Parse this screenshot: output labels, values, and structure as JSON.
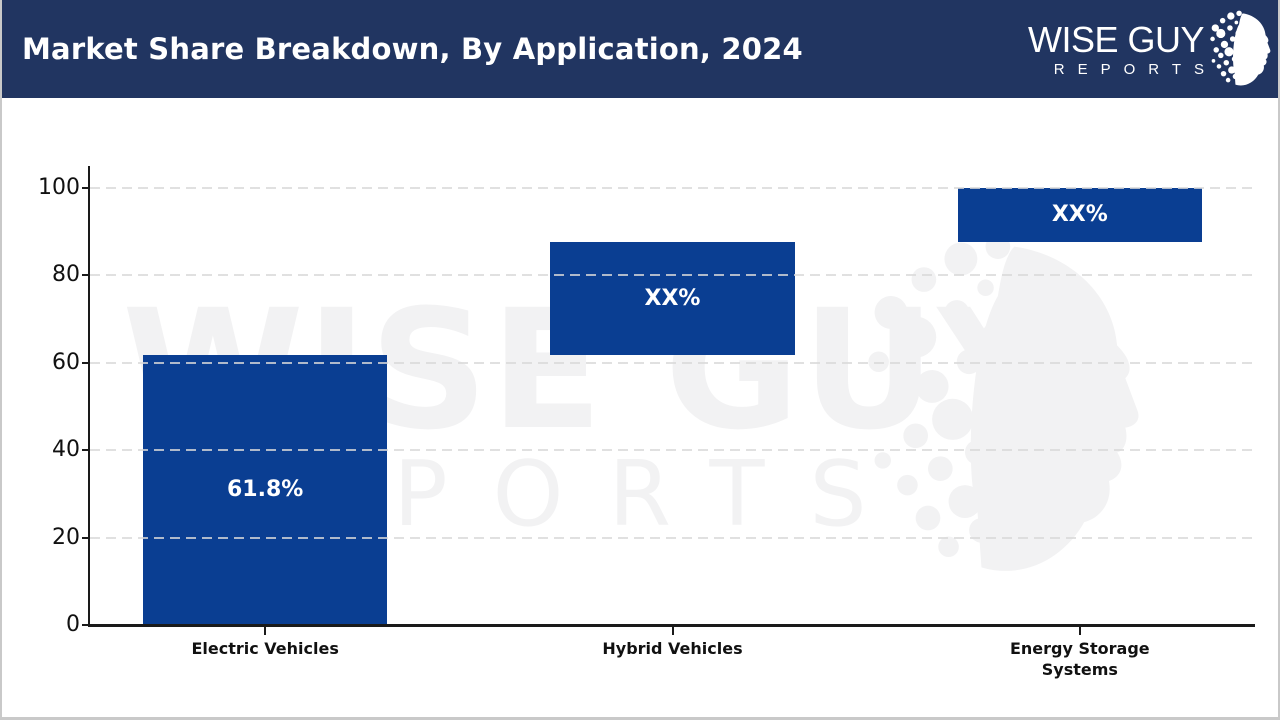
{
  "header": {
    "title": "Market Share Breakdown, By Application, 2024",
    "logo": {
      "wordmark": "WISE GUY",
      "subtext": "REPORTS"
    }
  },
  "watermark": {
    "line1": "WISE GUY",
    "line2": "REPORTS"
  },
  "colors": {
    "header_bg": "#213561",
    "bar": "#0a3e92",
    "grid": "#d9d9d9",
    "axis": "#1a1a1a",
    "tick_text": "#111111",
    "bar_label": "#ffffff",
    "watermark": "#f2f2f3",
    "page_border": "#c9c9c9"
  },
  "chart_data": {
    "type": "bar",
    "subtype": "waterfall",
    "title": "Market Share Breakdown, By Application, 2024",
    "xlabel": "",
    "ylabel": "",
    "ylim": [
      0,
      105
    ],
    "yticks": [
      0,
      20,
      40,
      60,
      80,
      100
    ],
    "grid": "horizontal-dashed",
    "legend": "none",
    "categories": [
      "Electric Vehicles",
      "Hybrid Vehicles",
      "Energy Storage Systems"
    ],
    "series": [
      {
        "name": "Market share (%)",
        "segments": [
          {
            "category": "Electric Vehicles",
            "start": 0,
            "end": 61.8,
            "label": "61.8%"
          },
          {
            "category": "Hybrid Vehicles",
            "start": 61.8,
            "end": 87.5,
            "label": "XX%"
          },
          {
            "category": "Energy Storage Systems",
            "start": 87.5,
            "end": 100,
            "label": "XX%"
          }
        ]
      }
    ]
  }
}
